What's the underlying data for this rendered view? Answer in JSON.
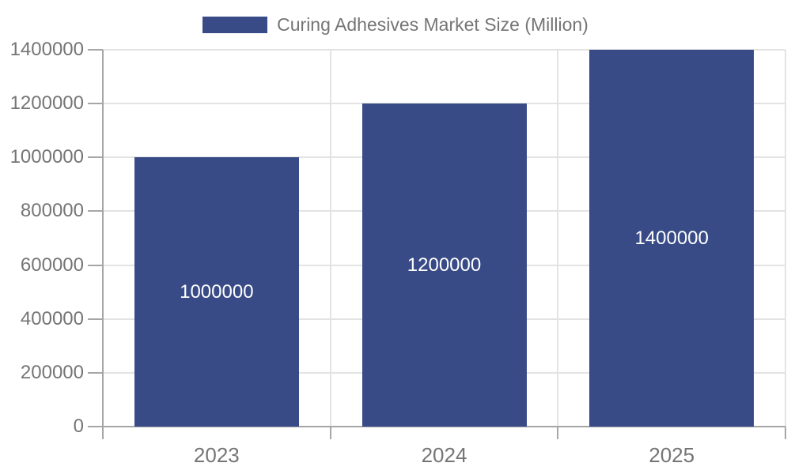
{
  "chart_data": {
    "type": "bar",
    "title": "Curing Adhesives Market Size (Million)",
    "categories": [
      "2023",
      "2024",
      "2025"
    ],
    "series": [
      {
        "name": "Curing Adhesives Market Size (Million)",
        "values": [
          1000000,
          1200000,
          1400000
        ]
      }
    ],
    "data_labels": [
      "1000000",
      "1200000",
      "1400000"
    ],
    "xlabel": "",
    "ylabel": "",
    "ylim": [
      0,
      1400000
    ],
    "yticks": [
      0,
      200000,
      400000,
      600000,
      800000,
      1000000,
      1200000,
      1400000
    ],
    "ytick_labels": [
      "0",
      "200000",
      "400000",
      "600000",
      "800000",
      "1000000",
      "1200000",
      "1400000"
    ],
    "grid": true,
    "legend_position": "top",
    "colors": {
      "bar": "#384b87",
      "grid": "#e3e3e3",
      "axis": "#a6a6a6",
      "tick_label": "#757575",
      "title": "#757575",
      "data_label": "#ffffff",
      "background": "#ffffff"
    }
  }
}
